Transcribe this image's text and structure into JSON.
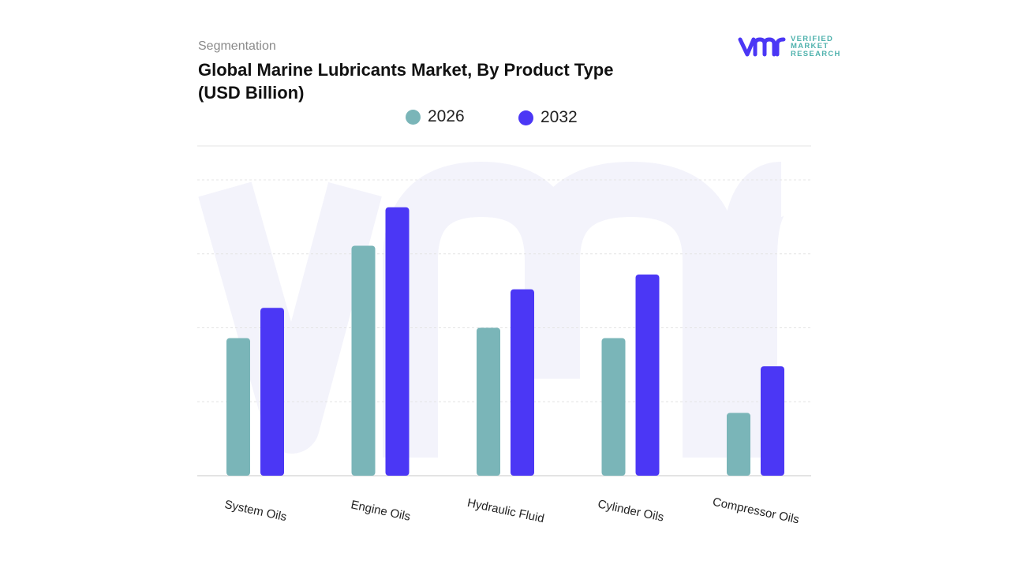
{
  "header": {
    "section": "Segmentation",
    "title_line1": "Global Marine Lubricants Market, By Product Type",
    "title_line2": "(USD Billion)"
  },
  "logo": {
    "text_lines": [
      "VERIFIED",
      "MARKET",
      "RESEARCH"
    ],
    "mark": "vmr"
  },
  "chart_data": {
    "type": "bar",
    "title": "Global Marine Lubricants Market, By Product Type (USD Billion)",
    "categories": [
      "System Oils",
      "Engine Oils",
      "Hydraulic Fluid",
      "Cylinder Oils",
      "Compressor Oils"
    ],
    "series": [
      {
        "name": "2026",
        "color": "#7ab5b8",
        "values": [
          1.86,
          3.11,
          2.0,
          1.86,
          0.85
        ]
      },
      {
        "name": "2032",
        "color": "#4b37f5",
        "values": [
          2.27,
          3.63,
          2.52,
          2.72,
          1.48
        ]
      }
    ],
    "ylim": [
      0,
      4
    ],
    "grid": true,
    "legend": "top",
    "xlabel": "",
    "ylabel": ""
  }
}
